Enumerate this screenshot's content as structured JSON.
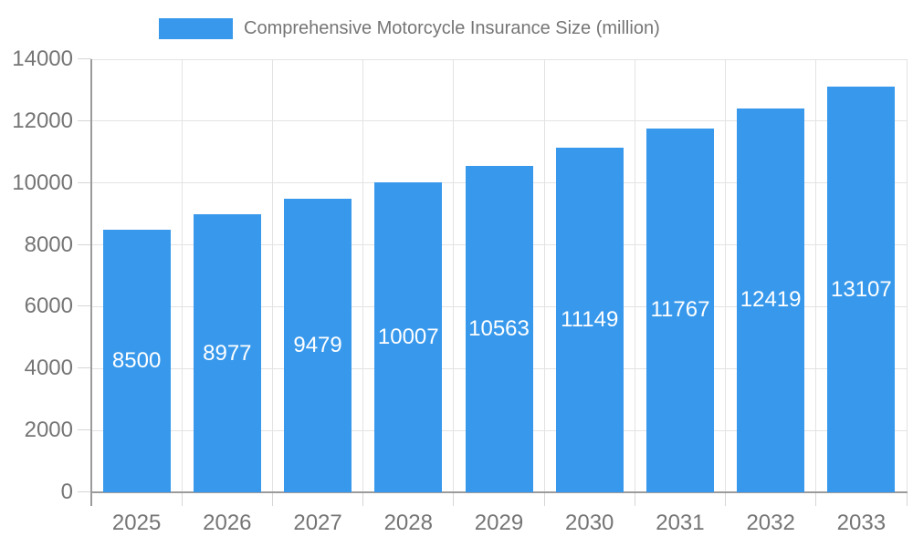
{
  "chart_data": {
    "type": "bar",
    "title": "Comprehensive Motorcycle Insurance Size (million)",
    "xlabel": "",
    "ylabel": "",
    "categories": [
      "2025",
      "2026",
      "2027",
      "2028",
      "2029",
      "2030",
      "2031",
      "2032",
      "2033"
    ],
    "values": [
      8500,
      8977,
      9479,
      10007,
      10563,
      11149,
      11767,
      12419,
      13107
    ],
    "ylim": [
      0,
      14000
    ],
    "yticks": [
      0,
      2000,
      4000,
      6000,
      8000,
      10000,
      12000,
      14000
    ],
    "grid": "full (horizontal and vertical light gray lines)",
    "legend_position": "top-left-of-center",
    "value_labels": "white, centered inside bars",
    "colors": {
      "bar": "#3899ec",
      "grid": "#e3e3e3",
      "axis": "#9b9b9b",
      "tick": "#d6d6d6",
      "text": "#757575",
      "value_label": "#ffffff",
      "background": "#ffffff"
    }
  }
}
